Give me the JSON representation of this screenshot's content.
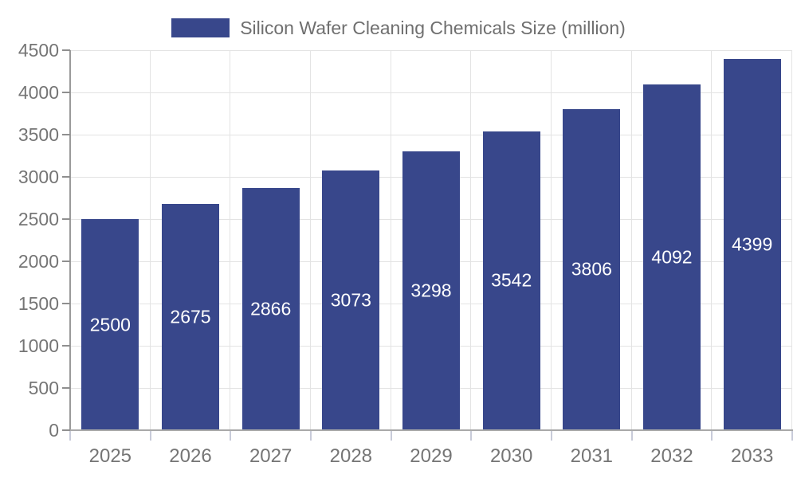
{
  "chart_data": {
    "type": "bar",
    "title": "Silicon Wafer Cleaning Chemicals Size (million)",
    "legend": "Silicon Wafer Cleaning Chemicals Size (million)",
    "categories": [
      "2025",
      "2026",
      "2027",
      "2028",
      "2029",
      "2030",
      "2031",
      "2032",
      "2033"
    ],
    "values": [
      2500,
      2675,
      2866,
      3073,
      3298,
      3542,
      3806,
      4092,
      4399
    ],
    "xlabel": "",
    "ylabel": "",
    "ylim": [
      0,
      4500
    ],
    "ytick_step": 500,
    "ytick_labels": [
      "0",
      "500",
      "1000",
      "1500",
      "2000",
      "2500",
      "3000",
      "3500",
      "4000",
      "4500"
    ],
    "grid": "on",
    "legend_position": "top-center",
    "bar_color": "#38478B",
    "bar_value_label_color": "#ffffff",
    "axis_text_color": "#757575",
    "legend_text_color": "#6f6f6f",
    "grid_color": "#e3e3e3",
    "axis_line_color": "#a0a0a0",
    "background_color": "#ffffff"
  }
}
